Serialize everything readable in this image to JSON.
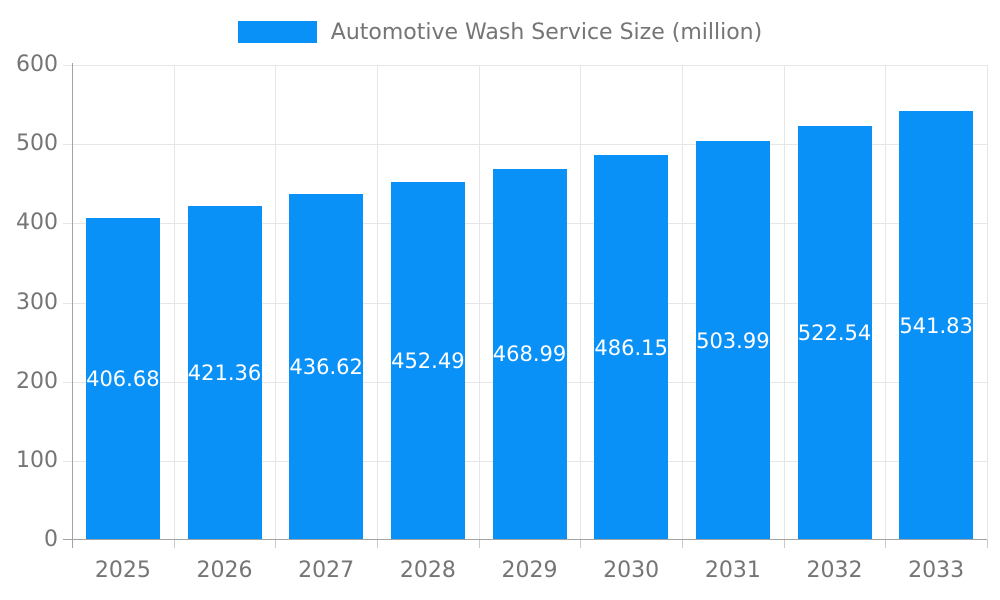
{
  "chart_data": {
    "type": "bar",
    "title": "Automotive Wash Service Size (million)",
    "categories": [
      "2025",
      "2026",
      "2027",
      "2028",
      "2029",
      "2030",
      "2031",
      "2032",
      "2033"
    ],
    "series": [
      {
        "name": "Automotive Wash Service Size (million)",
        "values": [
          406.68,
          421.36,
          436.62,
          452.49,
          468.99,
          486.15,
          503.99,
          522.54,
          541.83
        ]
      }
    ],
    "value_labels": [
      "406.68",
      "421.36",
      "436.62",
      "452.49",
      "468.99",
      "486.15",
      "503.99",
      "522.54",
      "541.83"
    ],
    "xlabel": "",
    "ylabel": "",
    "ylim": [
      0,
      600
    ],
    "yticks": [
      0,
      100,
      200,
      300,
      400,
      500,
      600
    ],
    "grid": true,
    "legend_position": "top",
    "colors": {
      "bar": "#0a91f8",
      "value_label_text": "#ffffff",
      "axis_line": "#a3a3a3",
      "gridline": "#e6e6e6",
      "tick_label_text": "#757575",
      "legend_text": "#757575"
    }
  }
}
